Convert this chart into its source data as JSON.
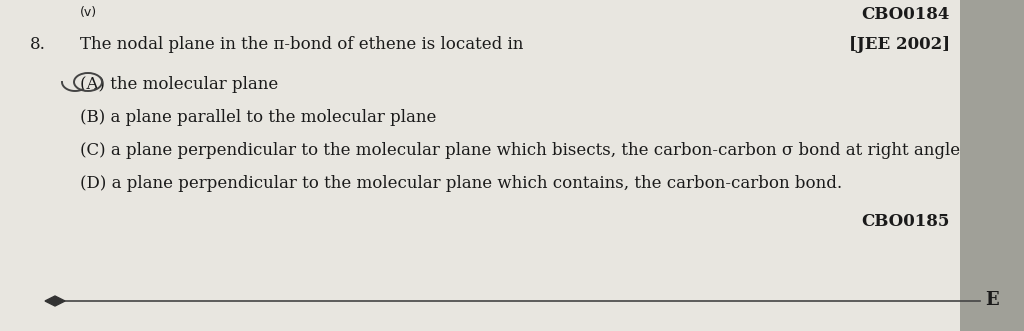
{
  "bg_color": "#c8c8c8",
  "paper_color": "#e8e6e0",
  "right_strip_color": "#a0a098",
  "top_label": "CBO0184",
  "jee_label": "[JEE 2002]",
  "question_num": "8.",
  "question_text": "The nodal plane in the π-bond of ethene is located in",
  "option_A": "(A) the molecular plane",
  "option_B": "(B) a plane parallel to the molecular plane",
  "option_C": "(C) a plane perpendicular to the molecular plane which bisects, the carbon-carbon σ bond at right angle",
  "option_D": "(D) a plane perpendicular to the molecular plane which contains, the carbon-carbon bond.",
  "bottom_label": "CBO0185",
  "top_partial": "(v)",
  "font_size_main": 12,
  "font_size_label": 12,
  "text_color": "#1a1a1a"
}
